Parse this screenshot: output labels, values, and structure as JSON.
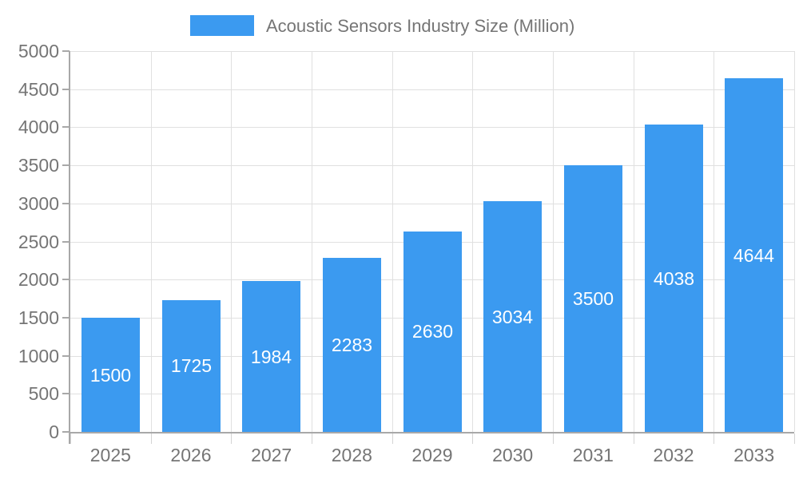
{
  "chart_data": {
    "type": "bar",
    "title": "Acoustic Sensors Industry Size (Million)",
    "legend": {
      "position": "top",
      "entries": [
        "Acoustic Sensors Industry Size (Million)"
      ]
    },
    "categories": [
      "2025",
      "2026",
      "2027",
      "2028",
      "2029",
      "2030",
      "2031",
      "2032",
      "2033"
    ],
    "values": [
      1500,
      1725,
      1984,
      2283,
      2630,
      3034,
      3500,
      4038,
      4644
    ],
    "bar_value_labels": [
      "1500",
      "1725",
      "1984",
      "2283",
      "2630",
      "3034",
      "3500",
      "4038",
      "4644"
    ],
    "xlabel": "",
    "ylabel": "",
    "ylim": [
      0,
      5000
    ],
    "y_tick_step": 500,
    "y_tick_labels": [
      "0",
      "500",
      "1000",
      "1500",
      "2000",
      "2500",
      "3000",
      "3500",
      "4000",
      "4500",
      "5000"
    ],
    "grid": true,
    "colors": {
      "bar": "#3b9af0",
      "grid": "#e0e0e0",
      "axis": "#a8a8a8",
      "tick": "#d4d4d4",
      "axis_text": "#757575",
      "bar_value_text": "#ffffff",
      "background": "#ffffff"
    }
  }
}
